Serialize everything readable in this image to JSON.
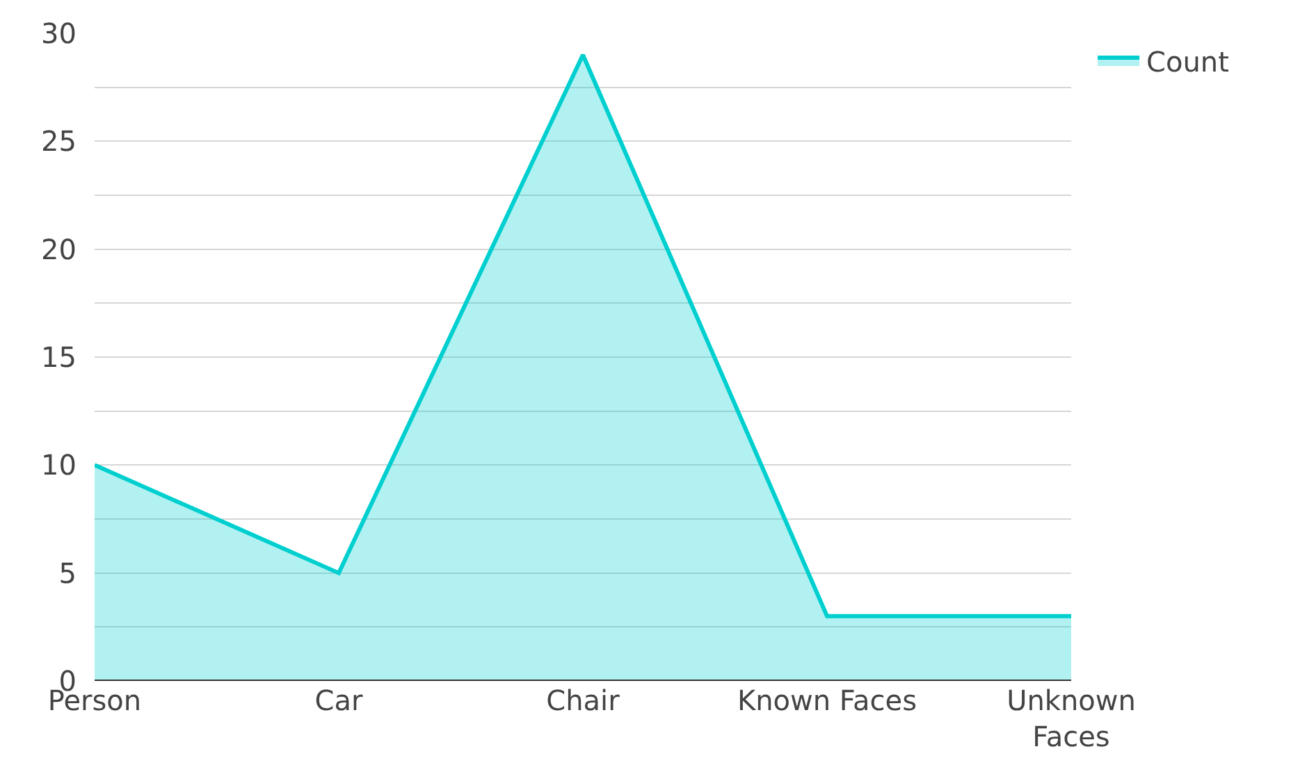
{
  "chart_data": {
    "type": "area",
    "categories": [
      "Person",
      "Car",
      "Chair",
      "Known Faces",
      "Unknown Faces"
    ],
    "series": [
      {
        "name": "Count",
        "color": "#00cfcf",
        "values": [
          10,
          5,
          29,
          3,
          3
        ]
      }
    ],
    "ylim": [
      0,
      30
    ],
    "yticks": [
      0,
      {
        "value": 2.5,
        "label": null
      },
      5,
      {
        "value": 7.5,
        "label": null
      },
      10,
      {
        "value": 12.5,
        "label": null
      },
      15,
      {
        "value": 17.5,
        "label": null
      },
      20,
      {
        "value": 22.5,
        "label": null
      },
      25,
      {
        "value": 27.5,
        "label": null
      },
      30
    ],
    "grid": "y",
    "legend": "top right"
  }
}
